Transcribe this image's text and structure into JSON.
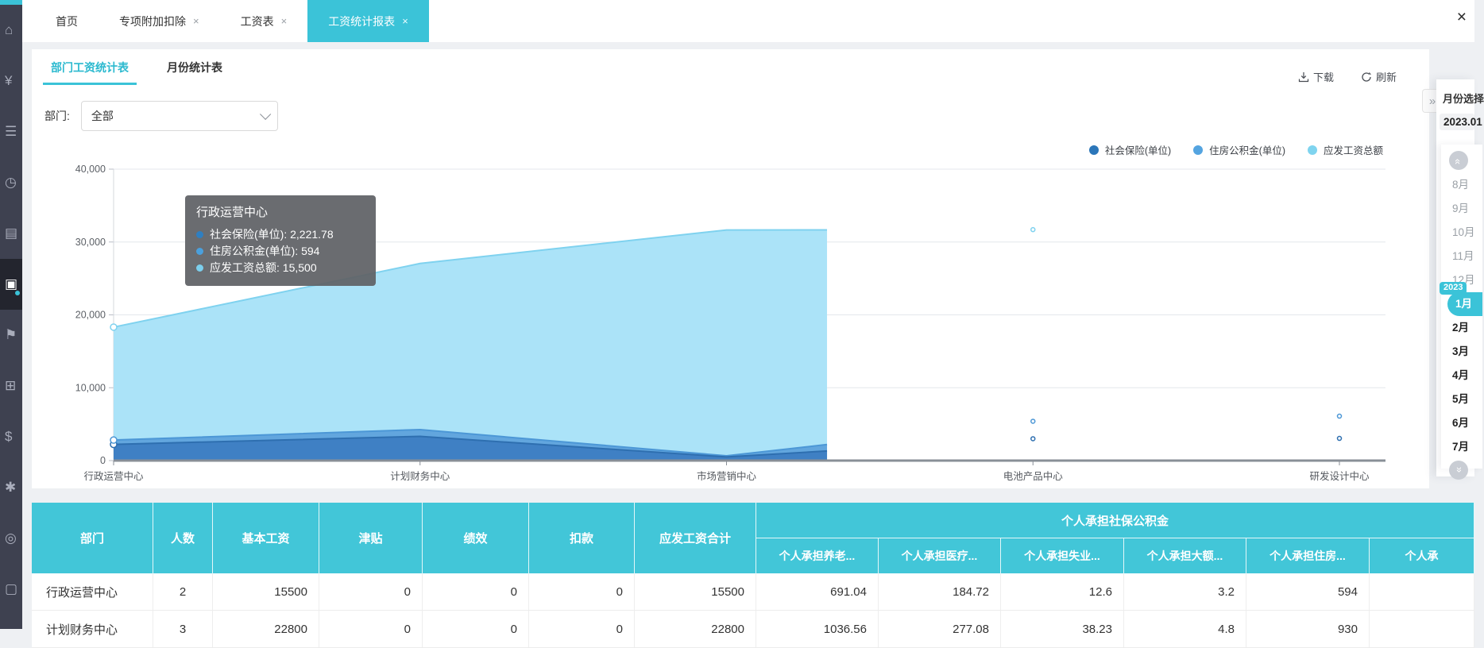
{
  "accent": "#3bc3d8",
  "window": {
    "close_icon": "×"
  },
  "sidebar": {
    "items": [
      {
        "name": "home-icon",
        "glyph": "⌂"
      },
      {
        "name": "salary-icon",
        "glyph": "¥"
      },
      {
        "name": "menu-icon",
        "glyph": "☰"
      },
      {
        "name": "clock-icon",
        "glyph": "◷"
      },
      {
        "name": "report-icon",
        "glyph": "▤"
      },
      {
        "name": "payroll-book-icon",
        "glyph": "▣",
        "active": true
      },
      {
        "name": "flag-icon",
        "glyph": "⚑"
      },
      {
        "name": "apps-icon",
        "glyph": "⊞"
      },
      {
        "name": "money-icon",
        "glyph": "$"
      },
      {
        "name": "asterisk-icon",
        "glyph": "✱"
      },
      {
        "name": "target-icon",
        "glyph": "◎"
      },
      {
        "name": "doc-icon",
        "glyph": "▢"
      }
    ]
  },
  "top_tabs": [
    {
      "label": "首页",
      "closable": false,
      "active": false
    },
    {
      "label": "专项附加扣除",
      "closable": true,
      "active": false
    },
    {
      "label": "工资表",
      "closable": true,
      "active": false
    },
    {
      "label": "工资统计报表",
      "closable": true,
      "active": true
    }
  ],
  "sub_tabs": [
    {
      "label": "部门工资统计表",
      "active": true
    },
    {
      "label": "月份统计表",
      "active": false
    }
  ],
  "toolbar": {
    "download_label": "下载",
    "refresh_label": "刷新"
  },
  "filter": {
    "label": "部门:",
    "value": "全部"
  },
  "chart_data": {
    "type": "area",
    "stacked": true,
    "categories": [
      "行政运营中心",
      "计划财务中心",
      "市场营销中心",
      "电池产品中心",
      "研发设计中心"
    ],
    "series": [
      {
        "name": "社会保险(单位)",
        "values": [
          2221.78,
          3324,
          500,
          3000,
          3050
        ],
        "fill": "#3f80c4",
        "stroke": "#2e6fb0",
        "legend_dot": "#2b76b9",
        "dot_indices": [
          3,
          4
        ]
      },
      {
        "name": "住房公积金(单位)",
        "values": [
          594,
          930,
          150,
          2400,
          3050
        ],
        "fill": "#62a6de",
        "stroke": "#4c97d6",
        "legend_dot": "#54a4e0",
        "dot_indices": [
          3,
          4
        ]
      },
      {
        "name": "应发工资总额",
        "values": [
          15500,
          22800,
          31000,
          26300,
          null
        ],
        "fill": "#abe3f8",
        "stroke": "#7fd2ef",
        "legend_dot": "#7fd4ef",
        "dot_indices": [
          3
        ]
      }
    ],
    "ylim": [
      0,
      40000
    ],
    "yticks": [
      0,
      10000,
      20000,
      30000,
      40000
    ],
    "ytick_labels": [
      "0",
      "10,000",
      "20,000",
      "30,000",
      "40,000"
    ],
    "grid": true,
    "legend_position": "top-right",
    "area_clip_fraction": 0.582,
    "note": "stacked area is cut off vertically after 市场营销中心; last two categories show isolated point markers only"
  },
  "tooltip": {
    "title": "行政运营中心",
    "items": [
      {
        "label": "社会保险(单位)",
        "value": "2,221.78",
        "color": "#2f7fc1"
      },
      {
        "label": "住房公积金(单位)",
        "value": "594",
        "color": "#4aa0dd"
      },
      {
        "label": "应发工资总额",
        "value": "15,500",
        "color": "#7ccfed"
      }
    ]
  },
  "month_panel": {
    "collapse_icon": "»",
    "title": "月份选择",
    "current": "2023.01",
    "items": [
      {
        "label": "8月",
        "muted": true
      },
      {
        "label": "9月",
        "muted": true
      },
      {
        "label": "10月",
        "muted": true
      },
      {
        "label": "11月",
        "muted": true
      },
      {
        "label": "12月",
        "muted": true
      },
      {
        "label": "1月",
        "selected": true,
        "badge": "2023"
      },
      {
        "label": "2月"
      },
      {
        "label": "3月"
      },
      {
        "label": "4月"
      },
      {
        "label": "5月"
      },
      {
        "label": "6月"
      },
      {
        "label": "7月"
      }
    ]
  },
  "table": {
    "columns": [
      "部门",
      "人数",
      "基本工资",
      "津贴",
      "绩效",
      "扣款",
      "应发工资合计"
    ],
    "group_header": "个人承担社保公积金",
    "group_columns": [
      "个人承担养老...",
      "个人承担医疗...",
      "个人承担失业...",
      "个人承担大额...",
      "个人承担住房...",
      "个人承"
    ],
    "rows": [
      [
        "行政运营中心",
        "2",
        "15500",
        "0",
        "0",
        "0",
        "15500",
        "691.04",
        "184.72",
        "12.6",
        "3.2",
        "594",
        ""
      ],
      [
        "计划财务中心",
        "3",
        "22800",
        "0",
        "0",
        "0",
        "22800",
        "1036.56",
        "277.08",
        "38.23",
        "4.8",
        "930",
        ""
      ]
    ]
  }
}
